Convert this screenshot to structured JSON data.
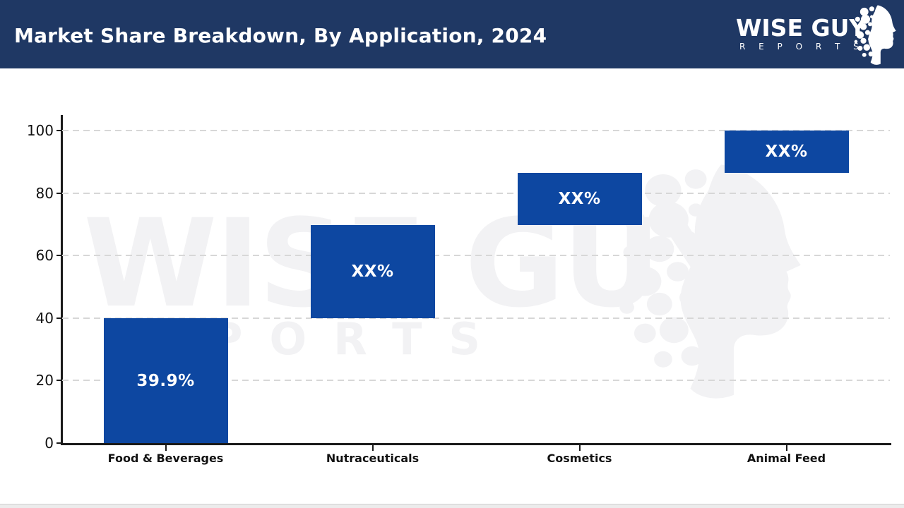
{
  "header": {
    "title": "Market Share Breakdown, By Application, 2024",
    "logo": {
      "line1": "WISE GUY",
      "line2": "R E P O R T S"
    }
  },
  "watermark": {
    "line1": "WISE GUY",
    "line2": "PORTS"
  },
  "colors": {
    "header_bg": "#1f3864",
    "bar": "#0d47a1",
    "bar_label": "#ffffff",
    "watermark": "#f2f2f4",
    "gridline": "#d7d7d7"
  },
  "chart_data": {
    "type": "bar",
    "subtype": "waterfall",
    "title": "Market Share Breakdown, By Application, 2024",
    "categories": [
      "Food & Beverages",
      "Nutraceuticals",
      "Cosmetics",
      "Animal Feed"
    ],
    "segments": [
      {
        "category": "Food & Beverages",
        "start": 0,
        "end": 39.9,
        "label": "39.9%"
      },
      {
        "category": "Nutraceuticals",
        "start": 39.9,
        "end": 69.8,
        "label": "XX%"
      },
      {
        "category": "Cosmetics",
        "start": 69.8,
        "end": 86.4,
        "label": "XX%"
      },
      {
        "category": "Animal Feed",
        "start": 86.4,
        "end": 100,
        "label": "XX%"
      }
    ],
    "values": [
      39.9,
      29.9,
      16.6,
      13.6
    ],
    "value_labels": [
      "39.9%",
      "XX%",
      "XX%",
      "XX%"
    ],
    "y_ticks": [
      0,
      20,
      40,
      60,
      80,
      100
    ],
    "ylim": [
      0,
      100
    ],
    "xlabel": "",
    "ylabel": "",
    "grid": "horizontal-dashed",
    "legend": "none",
    "bar_color": "#0d47a1"
  }
}
